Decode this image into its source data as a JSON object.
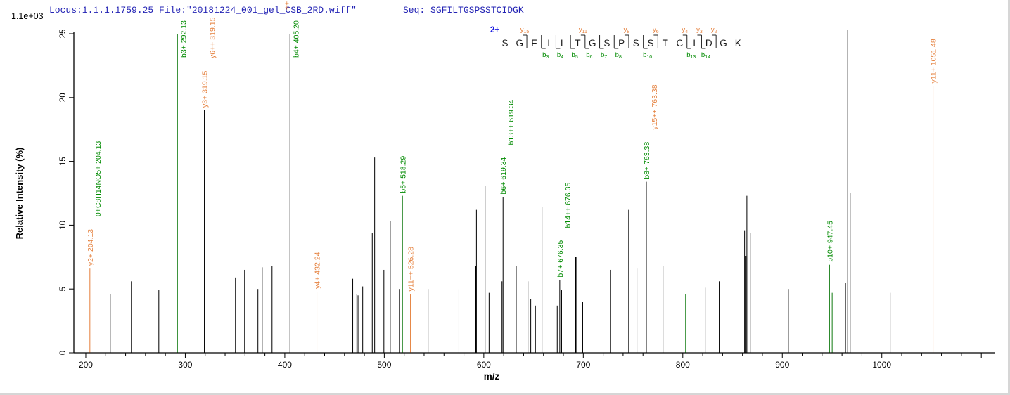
{
  "header": {
    "locus_file": "Locus:1.1.1.1759.25 File:\"20181224_001_gel_CSB_2RD.wiff\"",
    "seq_label": "Seq:",
    "seq_value": "SGFILTGSPSSTCIDGK"
  },
  "chart_data": {
    "type": "bar",
    "subtype": "ms2-stick-spectrum",
    "title": "",
    "xlabel": "m/z",
    "ylabel": "Relative  Intensity (%)",
    "y_scale_note": "1.1e+03",
    "xlim": [
      188,
      1114
    ],
    "ylim": [
      0,
      25
    ],
    "x_major_ticks": [
      200,
      300,
      400,
      500,
      600,
      700,
      800,
      900,
      1000
    ],
    "x_minor_step": 20,
    "y_ticks": [
      0,
      5,
      10,
      15,
      20,
      25
    ],
    "grid": false,
    "legend": "none",
    "palette": {
      "black": "#000000",
      "green": "#117a11",
      "orange": "#e5803d"
    },
    "label_colors": {
      "y": "#e5803d",
      "b": "#008a00"
    },
    "peaks": [
      {
        "mz": 204.13,
        "i": 6.6,
        "c": "orange",
        "labels": [
          {
            "t": "y2+ 204.13",
            "ion": "y"
          },
          {
            "t": "0+C8H14NO5+ 204.13",
            "ion": "b"
          }
        ]
      },
      {
        "mz": 224.6,
        "i": 4.6
      },
      {
        "mz": 245.8,
        "i": 5.6
      },
      {
        "mz": 273.4,
        "i": 4.9
      },
      {
        "mz": 292.13,
        "i": 25.0,
        "c": "green",
        "labels": [
          {
            "t": "b3+ 292.13",
            "ion": "b"
          }
        ]
      },
      {
        "mz": 319.15,
        "i": 19.0,
        "labels": [
          {
            "t": "y3+ 319.15",
            "ion": "y"
          },
          {
            "t": "y6++ 319.15",
            "ion": "y"
          }
        ]
      },
      {
        "mz": 350.4,
        "i": 5.9
      },
      {
        "mz": 359.6,
        "i": 6.5
      },
      {
        "mz": 373.0,
        "i": 5.0
      },
      {
        "mz": 377.3,
        "i": 6.7
      },
      {
        "mz": 387.2,
        "i": 6.8
      },
      {
        "mz": 405.2,
        "i": 25.0,
        "labels": [
          {
            "t": "b4+ 405.20",
            "ion": "b"
          },
          {
            "t": "++",
            "ion": "y"
          }
        ]
      },
      {
        "mz": 432.24,
        "i": 4.8,
        "c": "orange",
        "labels": [
          {
            "t": "y4+ 432.24",
            "ion": "y"
          }
        ]
      },
      {
        "mz": 468.3,
        "i": 5.8
      },
      {
        "mz": 472.4,
        "i": 4.6
      },
      {
        "mz": 473.6,
        "i": 4.5
      },
      {
        "mz": 478.3,
        "i": 5.2
      },
      {
        "mz": 487.9,
        "i": 9.4
      },
      {
        "mz": 490.3,
        "i": 15.3
      },
      {
        "mz": 499.6,
        "i": 6.5
      },
      {
        "mz": 506.0,
        "i": 10.3
      },
      {
        "mz": 515.4,
        "i": 5.0
      },
      {
        "mz": 518.29,
        "i": 12.3,
        "c": "green",
        "labels": [
          {
            "t": "b5+ 518.29",
            "ion": "b"
          }
        ]
      },
      {
        "mz": 526.28,
        "i": 4.6,
        "c": "orange",
        "labels": [
          {
            "t": "y11++ 526.28",
            "ion": "y"
          }
        ]
      },
      {
        "mz": 544.0,
        "i": 5.0
      },
      {
        "mz": 575.0,
        "i": 5.0
      },
      {
        "mz": 591.7,
        "i": 6.8,
        "w": 2
      },
      {
        "mz": 592.6,
        "i": 11.2
      },
      {
        "mz": 601.3,
        "i": 13.1
      },
      {
        "mz": 605.3,
        "i": 4.7
      },
      {
        "mz": 618.3,
        "i": 5.6
      },
      {
        "mz": 619.34,
        "i": 12.2,
        "labels": [
          {
            "t": "b6+ 619.34",
            "ion": "b"
          },
          {
            "t": "b13++ 619.34",
            "ion": "b"
          }
        ]
      },
      {
        "mz": 632.6,
        "i": 6.8
      },
      {
        "mz": 644.4,
        "i": 5.6
      },
      {
        "mz": 647.2,
        "i": 4.2
      },
      {
        "mz": 651.9,
        "i": 3.7
      },
      {
        "mz": 658.5,
        "i": 11.4
      },
      {
        "mz": 673.8,
        "i": 3.7
      },
      {
        "mz": 676.35,
        "i": 5.7,
        "labels": [
          {
            "t": "b7+ 676.35",
            "ion": "b"
          },
          {
            "t": "b14++ 676.35",
            "ion": "b"
          }
        ]
      },
      {
        "mz": 678.2,
        "i": 4.9
      },
      {
        "mz": 692.4,
        "i": 7.5,
        "w": 2
      },
      {
        "mz": 699.4,
        "i": 4.0
      },
      {
        "mz": 727.2,
        "i": 6.5
      },
      {
        "mz": 745.6,
        "i": 11.2
      },
      {
        "mz": 753.9,
        "i": 6.6
      },
      {
        "mz": 763.38,
        "i": 13.4,
        "labels": [
          {
            "t": "b8+ 763.38",
            "ion": "b"
          },
          {
            "t": "y15++ 763.38",
            "ion": "y"
          }
        ]
      },
      {
        "mz": 780.1,
        "i": 6.8
      },
      {
        "mz": 802.8,
        "i": 4.6,
        "c": "green"
      },
      {
        "mz": 822.5,
        "i": 5.1
      },
      {
        "mz": 836.6,
        "i": 5.6
      },
      {
        "mz": 862.1,
        "i": 9.6
      },
      {
        "mz": 863.2,
        "i": 7.6,
        "w": 2
      },
      {
        "mz": 864.4,
        "i": 12.3
      },
      {
        "mz": 867.8,
        "i": 9.4
      },
      {
        "mz": 906.1,
        "i": 5.0
      },
      {
        "mz": 947.45,
        "i": 6.9,
        "c": "green",
        "labels": [
          {
            "t": "b10+ 947.45",
            "ion": "b"
          }
        ]
      },
      {
        "mz": 950.1,
        "i": 4.7,
        "c": "green"
      },
      {
        "mz": 963.5,
        "i": 5.5
      },
      {
        "mz": 965.7,
        "i": 25.3
      },
      {
        "mz": 968.2,
        "i": 12.5
      },
      {
        "mz": 1008.4,
        "i": 4.7
      },
      {
        "mz": 1051.48,
        "i": 20.9,
        "c": "orange",
        "labels": [
          {
            "t": "y11+ 1051.48",
            "ion": "y"
          }
        ]
      }
    ],
    "sequence_panel": {
      "charge": "2+",
      "residues": [
        "S",
        "G",
        "F",
        "I",
        "L",
        "T",
        "G",
        "S",
        "P",
        "S",
        "S",
        "T",
        "C",
        "I",
        "D",
        "G",
        "K"
      ],
      "cuts": [
        {
          "after": 2,
          "y": "y15"
        },
        {
          "after": 3,
          "b": "b3"
        },
        {
          "after": 4,
          "b": "b4"
        },
        {
          "after": 5,
          "b": "b5"
        },
        {
          "after": 6,
          "y": "y11",
          "b": "b6"
        },
        {
          "after": 7,
          "b": "b7"
        },
        {
          "after": 8,
          "b": "b8"
        },
        {
          "after": 9,
          "y": "y8"
        },
        {
          "after": 10,
          "b": "b10"
        },
        {
          "after": 11,
          "y": "y6"
        },
        {
          "after": 13,
          "y": "y4",
          "b": "b13"
        },
        {
          "after": 14,
          "y": "y3",
          "b": "b14"
        },
        {
          "after": 15,
          "y": "y2"
        }
      ]
    }
  }
}
